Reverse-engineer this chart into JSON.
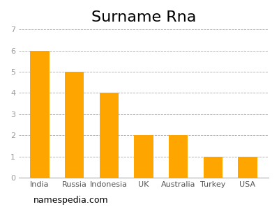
{
  "title": "Surname Rna",
  "categories": [
    "India",
    "Russia",
    "Indonesia",
    "UK",
    "Australia",
    "Turkey",
    "USA"
  ],
  "values": [
    6,
    5,
    4,
    2,
    2,
    1,
    1
  ],
  "bar_color": "#FFA500",
  "ylim": [
    0,
    7
  ],
  "yticks": [
    0,
    1,
    2,
    3,
    4,
    5,
    6,
    7
  ],
  "background_color": "#ffffff",
  "title_fontsize": 16,
  "tick_fontsize": 8,
  "ylabel_color": "#999999",
  "watermark": "namespedia.com",
  "watermark_fontsize": 9,
  "grid_color": "#aaaaaa",
  "bar_width": 0.55
}
